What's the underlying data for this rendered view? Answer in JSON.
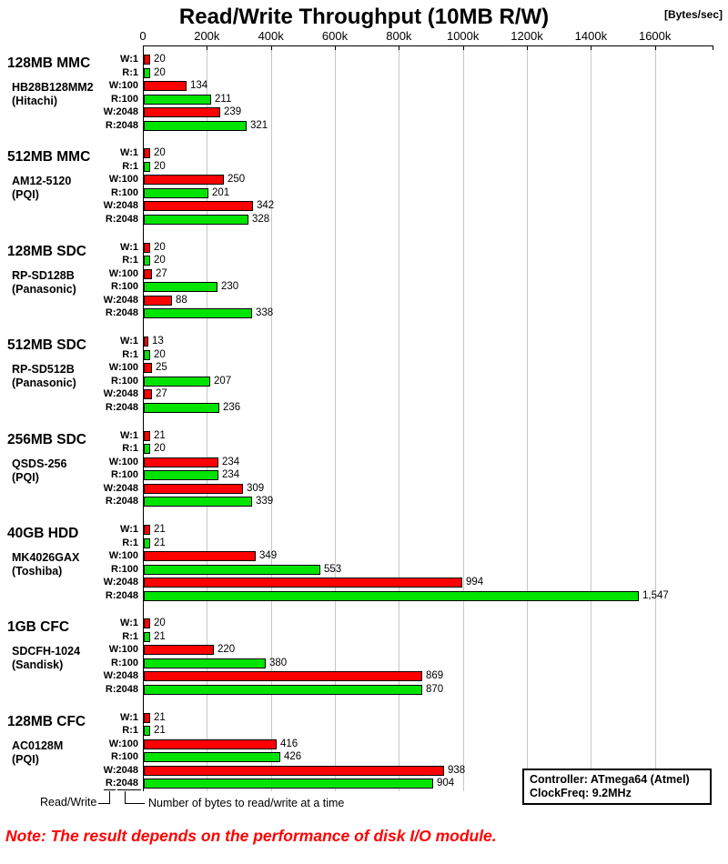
{
  "title": "Read/Write Throughput (10MB R/W)",
  "unit_label": "[Bytes/sec]",
  "note": "Note: The result depends on the performance of disk I/O module.",
  "info_box": {
    "line1": "Controller: ATmega64 (Atmel)",
    "line2": "ClockFreq: 9.2MHz"
  },
  "footnote": {
    "read_write": "Read/Write",
    "bytes_label": "Number of bytes to read/write at a time"
  },
  "chart_data": {
    "type": "bar",
    "orientation": "horizontal",
    "title": "Read/Write Throughput (10MB R/W)",
    "unit": "Bytes/sec",
    "legend_position": "none",
    "x_axis": {
      "tick_labels": [
        "0",
        "200k",
        "400k",
        "600k",
        "800k",
        "1000k",
        "1200k",
        "1400k",
        "1600k"
      ],
      "tick_values_k": [
        0,
        200,
        400,
        600,
        800,
        1000,
        1200,
        1400,
        1600
      ],
      "max_k": 1780,
      "grid": true
    },
    "bar_labels": [
      "W:1",
      "R:1",
      "W:100",
      "R:100",
      "W:2048",
      "R:2048"
    ],
    "colors": {
      "write": "#ff0000",
      "read": "#00e400"
    },
    "groups": [
      {
        "name": "128MB MMC",
        "model": "HB28B128MM2",
        "vendor": "(Hitachi)",
        "values_k": [
          20,
          20,
          134,
          211,
          239,
          321
        ],
        "value_labels": [
          "20",
          "20",
          "134",
          "211",
          "239",
          "321"
        ]
      },
      {
        "name": "512MB MMC",
        "model": "AM12-5120",
        "vendor": "(PQI)",
        "values_k": [
          20,
          20,
          250,
          201,
          342,
          328
        ],
        "value_labels": [
          "20",
          "20",
          "250",
          "201",
          "342",
          "328"
        ]
      },
      {
        "name": "128MB SDC",
        "model": "RP-SD128B",
        "vendor": "(Panasonic)",
        "values_k": [
          20,
          20,
          27,
          230,
          88,
          338
        ],
        "value_labels": [
          "20",
          "20",
          "27",
          "230",
          "88",
          "338"
        ]
      },
      {
        "name": "512MB SDC",
        "model": "RP-SD512B",
        "vendor": "(Panasonic)",
        "values_k": [
          13,
          20,
          25,
          207,
          27,
          236
        ],
        "value_labels": [
          "13",
          "20",
          "25",
          "207",
          "27",
          "236"
        ]
      },
      {
        "name": "256MB SDC",
        "model": "QSDS-256",
        "vendor": "(PQI)",
        "values_k": [
          21,
          20,
          234,
          234,
          309,
          339
        ],
        "value_labels": [
          "21",
          "20",
          "234",
          "234",
          "309",
          "339"
        ]
      },
      {
        "name": "40GB HDD",
        "model": "MK4026GAX",
        "vendor": "(Toshiba)",
        "values_k": [
          21,
          21,
          349,
          553,
          994,
          1547
        ],
        "value_labels": [
          "21",
          "21",
          "349",
          "553",
          "994",
          "1,547"
        ]
      },
      {
        "name": "1GB CFC",
        "model": "SDCFH-1024",
        "vendor": "(Sandisk)",
        "values_k": [
          20,
          21,
          220,
          380,
          869,
          870
        ],
        "value_labels": [
          "20",
          "21",
          "220",
          "380",
          "869",
          "870"
        ]
      },
      {
        "name": "128MB CFC",
        "model": "AC0128M",
        "vendor": "(PQI)",
        "values_k": [
          21,
          21,
          416,
          426,
          938,
          904
        ],
        "value_labels": [
          "21",
          "21",
          "416",
          "426",
          "938",
          "904"
        ]
      }
    ]
  }
}
